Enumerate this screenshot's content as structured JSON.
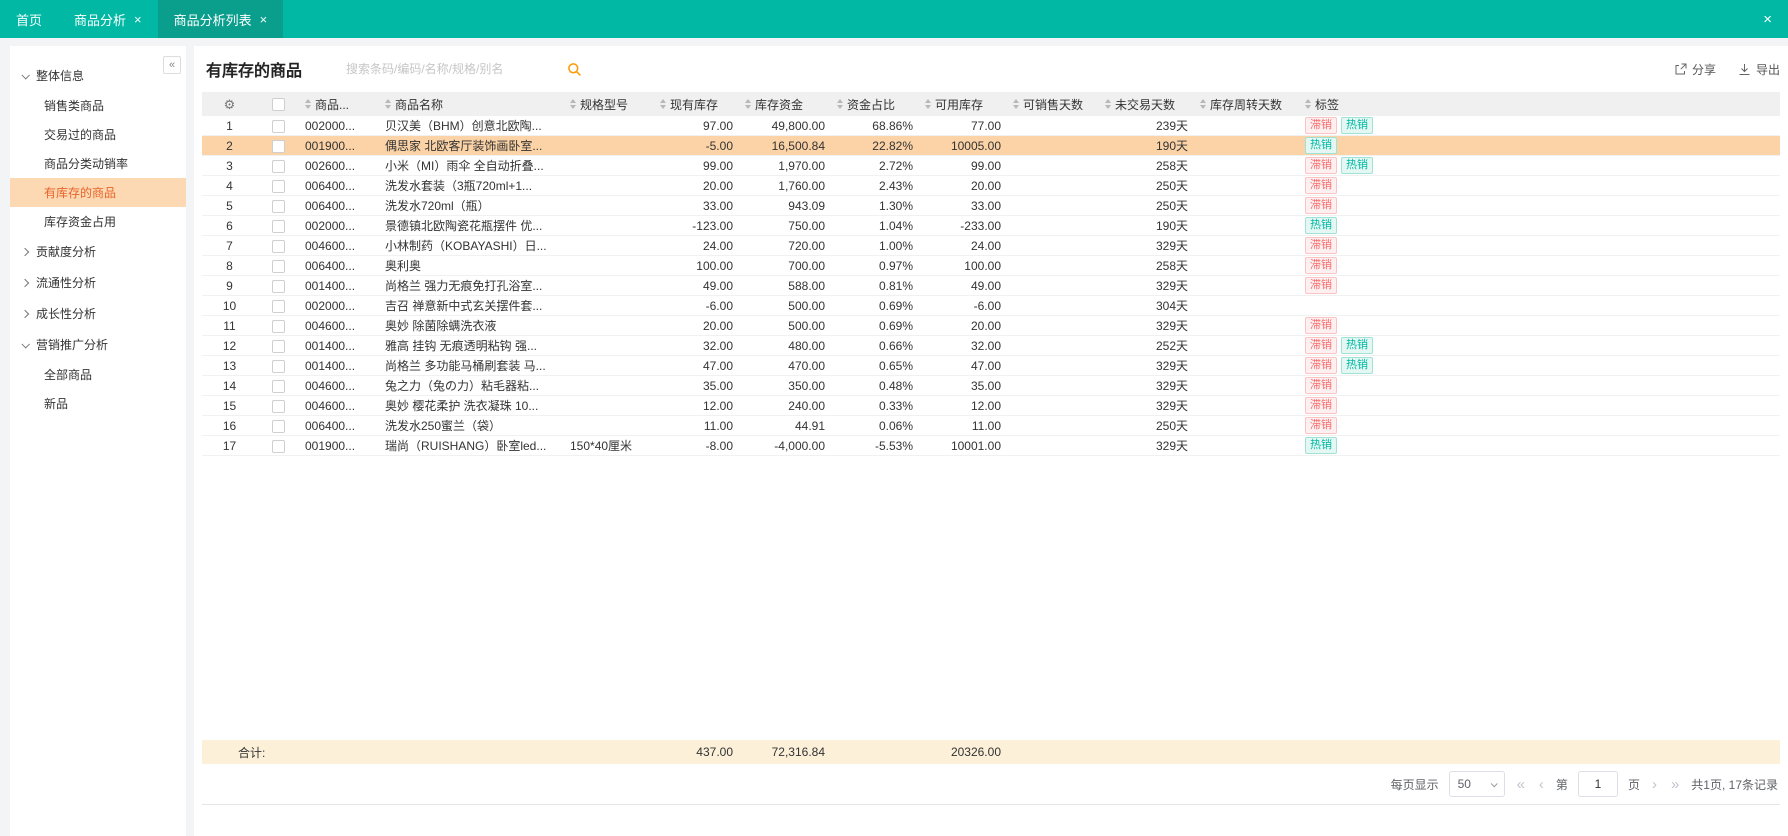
{
  "colors": {
    "brand_teal": "#00b8a3",
    "active_tab_bg": "#0a9e8d",
    "selected_row_bg": "#fbd3a6",
    "sidebar_active_bg": "#fcd9b3",
    "sidebar_active_text": "#e8632a",
    "summary_row_bg": "#fcf0d9",
    "search_icon": "#ff9800"
  },
  "topbar": {
    "tabs": [
      {
        "label": "首页",
        "closable": false,
        "active": false
      },
      {
        "label": "商品分析",
        "closable": true,
        "active": false
      },
      {
        "label": "商品分析列表",
        "closable": true,
        "active": true
      }
    ],
    "tab_close_icon": "×",
    "close_icon": "×"
  },
  "sidebar": {
    "collapse_icon": "«",
    "groups": [
      {
        "label": "整体信息",
        "expanded": true,
        "active": "有库存的商品",
        "items": [
          "销售类商品",
          "交易过的商品",
          "商品分类动销率",
          "有库存的商品",
          "库存资金占用"
        ]
      },
      {
        "label": "贡献度分析",
        "expanded": false,
        "active": "",
        "items": []
      },
      {
        "label": "流通性分析",
        "expanded": false,
        "active": "",
        "items": []
      },
      {
        "label": "成长性分析",
        "expanded": false,
        "active": "",
        "items": []
      },
      {
        "label": "营销推广分析",
        "expanded": true,
        "active": "",
        "items": [
          "全部商品",
          "新品"
        ]
      }
    ]
  },
  "main": {
    "title": "有库存的商品",
    "search_placeholder": "搜索条码/编码/名称/规格/别名",
    "share_label": "分享",
    "export_label": "导出"
  },
  "table": {
    "gear_icon": "⚙",
    "columns": [
      "商品...",
      "商品名称",
      "规格型号",
      "现有库存",
      "库存资金",
      "资金占比",
      "可用库存",
      "可销售天数",
      "未交易天数",
      "库存周转天数",
      "标签"
    ],
    "tag_colors": {
      "滞销": {
        "text": "#f56c6c",
        "bg": "#fef0f0",
        "border": "#fbc4c4"
      },
      "热销": {
        "text": "#00b8a3",
        "bg": "#e4f7f3",
        "border": "#a0e3d6"
      }
    },
    "rows": [
      {
        "no": "1",
        "code": "002000...",
        "name": "贝汉美（BHM）创意北欧陶...",
        "spec": "",
        "stock": "97.00",
        "fund": "49,800.00",
        "ratio": "68.86%",
        "available": "77.00",
        "sale_days": "",
        "no_trade_days": "239天",
        "turnover_days": "",
        "tags": [
          "滞销",
          "热销"
        ],
        "selected": false
      },
      {
        "no": "2",
        "code": "001900...",
        "name": "偶思家 北欧客厅装饰画卧室...",
        "spec": "",
        "stock": "-5.00",
        "fund": "16,500.84",
        "ratio": "22.82%",
        "available": "10005.00",
        "sale_days": "",
        "no_trade_days": "190天",
        "turnover_days": "",
        "tags": [
          "热销"
        ],
        "selected": true
      },
      {
        "no": "3",
        "code": "002600...",
        "name": "小米（MI）雨伞 全自动折叠...",
        "spec": "",
        "stock": "99.00",
        "fund": "1,970.00",
        "ratio": "2.72%",
        "available": "99.00",
        "sale_days": "",
        "no_trade_days": "258天",
        "turnover_days": "",
        "tags": [
          "滞销",
          "热销"
        ],
        "selected": false
      },
      {
        "no": "4",
        "code": "006400...",
        "name": "洗发水套装（3瓶720ml+1...",
        "spec": "",
        "stock": "20.00",
        "fund": "1,760.00",
        "ratio": "2.43%",
        "available": "20.00",
        "sale_days": "",
        "no_trade_days": "250天",
        "turnover_days": "",
        "tags": [
          "滞销"
        ],
        "selected": false
      },
      {
        "no": "5",
        "code": "006400...",
        "name": "洗发水720ml（瓶）",
        "spec": "",
        "stock": "33.00",
        "fund": "943.09",
        "ratio": "1.30%",
        "available": "33.00",
        "sale_days": "",
        "no_trade_days": "250天",
        "turnover_days": "",
        "tags": [
          "滞销"
        ],
        "selected": false
      },
      {
        "no": "6",
        "code": "002000...",
        "name": "景德镇北欧陶瓷花瓶摆件 优...",
        "spec": "",
        "stock": "-123.00",
        "fund": "750.00",
        "ratio": "1.04%",
        "available": "-233.00",
        "sale_days": "",
        "no_trade_days": "190天",
        "turnover_days": "",
        "tags": [
          "热销"
        ],
        "selected": false
      },
      {
        "no": "7",
        "code": "004600...",
        "name": "小林制药（KOBAYASHI）日...",
        "spec": "",
        "stock": "24.00",
        "fund": "720.00",
        "ratio": "1.00%",
        "available": "24.00",
        "sale_days": "",
        "no_trade_days": "329天",
        "turnover_days": "",
        "tags": [
          "滞销"
        ],
        "selected": false
      },
      {
        "no": "8",
        "code": "006400...",
        "name": "奥利奥",
        "spec": "",
        "stock": "100.00",
        "fund": "700.00",
        "ratio": "0.97%",
        "available": "100.00",
        "sale_days": "",
        "no_trade_days": "258天",
        "turnover_days": "",
        "tags": [
          "滞销"
        ],
        "selected": false
      },
      {
        "no": "9",
        "code": "001400...",
        "name": "尚格兰 强力无痕免打孔浴室...",
        "spec": "",
        "stock": "49.00",
        "fund": "588.00",
        "ratio": "0.81%",
        "available": "49.00",
        "sale_days": "",
        "no_trade_days": "329天",
        "turnover_days": "",
        "tags": [
          "滞销"
        ],
        "selected": false
      },
      {
        "no": "10",
        "code": "002000...",
        "name": "吉召 禅意新中式玄关摆件套...",
        "spec": "",
        "stock": "-6.00",
        "fund": "500.00",
        "ratio": "0.69%",
        "available": "-6.00",
        "sale_days": "",
        "no_trade_days": "304天",
        "turnover_days": "",
        "tags": [],
        "selected": false
      },
      {
        "no": "11",
        "code": "004600...",
        "name": "奥妙 除菌除螨洗衣液",
        "spec": "",
        "stock": "20.00",
        "fund": "500.00",
        "ratio": "0.69%",
        "available": "20.00",
        "sale_days": "",
        "no_trade_days": "329天",
        "turnover_days": "",
        "tags": [
          "滞销"
        ],
        "selected": false
      },
      {
        "no": "12",
        "code": "001400...",
        "name": "雅高 挂钩 无痕透明粘钩 强...",
        "spec": "",
        "stock": "32.00",
        "fund": "480.00",
        "ratio": "0.66%",
        "available": "32.00",
        "sale_days": "",
        "no_trade_days": "252天",
        "turnover_days": "",
        "tags": [
          "滞销",
          "热销"
        ],
        "selected": false
      },
      {
        "no": "13",
        "code": "001400...",
        "name": "尚格兰 多功能马桶刷套装 马...",
        "spec": "",
        "stock": "47.00",
        "fund": "470.00",
        "ratio": "0.65%",
        "available": "47.00",
        "sale_days": "",
        "no_trade_days": "329天",
        "turnover_days": "",
        "tags": [
          "滞销",
          "热销"
        ],
        "selected": false
      },
      {
        "no": "14",
        "code": "004600...",
        "name": "兔之力（兔の力）粘毛器粘...",
        "spec": "",
        "stock": "35.00",
        "fund": "350.00",
        "ratio": "0.48%",
        "available": "35.00",
        "sale_days": "",
        "no_trade_days": "329天",
        "turnover_days": "",
        "tags": [
          "滞销"
        ],
        "selected": false
      },
      {
        "no": "15",
        "code": "004600...",
        "name": "奥妙 樱花柔护 洗衣凝珠 10...",
        "spec": "",
        "stock": "12.00",
        "fund": "240.00",
        "ratio": "0.33%",
        "available": "12.00",
        "sale_days": "",
        "no_trade_days": "329天",
        "turnover_days": "",
        "tags": [
          "滞销"
        ],
        "selected": false
      },
      {
        "no": "16",
        "code": "006400...",
        "name": "洗发水250蜜兰（袋）",
        "spec": "",
        "stock": "11.00",
        "fund": "44.91",
        "ratio": "0.06%",
        "available": "11.00",
        "sale_days": "",
        "no_trade_days": "250天",
        "turnover_days": "",
        "tags": [
          "滞销"
        ],
        "selected": false
      },
      {
        "no": "17",
        "code": "001900...",
        "name": "瑞尚（RUISHANG）卧室led...",
        "spec": "150*40厘米",
        "stock": "-8.00",
        "fund": "-4,000.00",
        "ratio": "-5.53%",
        "available": "10001.00",
        "sale_days": "",
        "no_trade_days": "329天",
        "turnover_days": "",
        "tags": [
          "热销"
        ],
        "selected": false
      }
    ],
    "summary": {
      "label": "合计:",
      "stock": "437.00",
      "fund": "72,316.84",
      "available": "20326.00"
    }
  },
  "pagination": {
    "page_size_label": "每页显示",
    "page_size": "50",
    "icons": {
      "first": "«",
      "prev": "‹",
      "next": "›",
      "last": "»"
    },
    "page_prefix": "第",
    "page_value": "1",
    "page_suffix": "页",
    "total": "共1页, 17条记录"
  }
}
